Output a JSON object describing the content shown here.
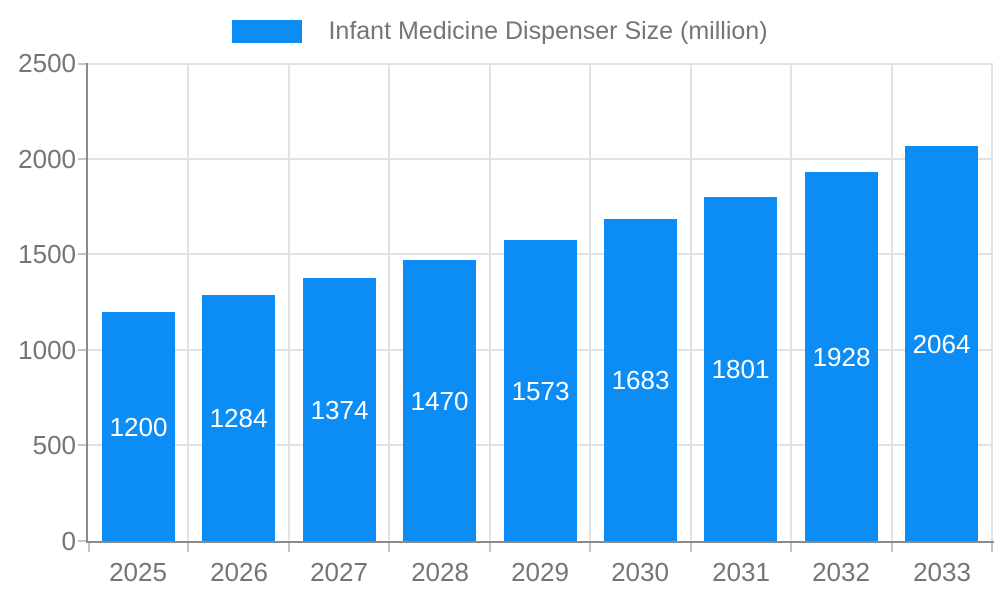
{
  "chart_data": {
    "type": "bar",
    "legend": "Infant Medicine Dispenser Size (million)",
    "legend_position": "top",
    "categories": [
      "2025",
      "2026",
      "2027",
      "2028",
      "2029",
      "2030",
      "2031",
      "2032",
      "2033"
    ],
    "values": [
      1200,
      1284,
      1374,
      1470,
      1573,
      1683,
      1801,
      1928,
      2064
    ],
    "ylim": [
      0,
      2500
    ],
    "y_ticks": [
      0,
      500,
      1000,
      1500,
      2000,
      2500
    ],
    "grid": true,
    "colors": {
      "bar": "#0c8df5",
      "tick_text": "#757575",
      "legend_text": "#757575",
      "bar_value_text": "#ffffff",
      "gridline": "#e2e2e2",
      "tick_mark": "#c4c4c4",
      "axis_line": "#8b8b8b"
    }
  }
}
